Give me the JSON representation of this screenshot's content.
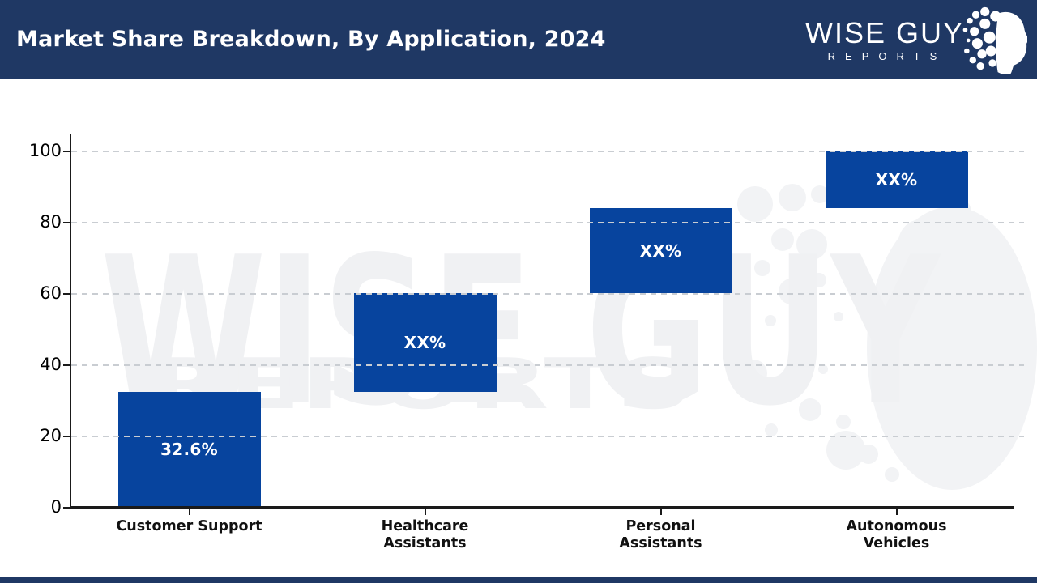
{
  "header": {
    "title": "Market Share Breakdown, By Application, 2024",
    "bg_color": "#1f3864",
    "logo": {
      "line1": "WISE GUY",
      "line2": "REPORTS"
    }
  },
  "watermark": {
    "line1": "WISE GUY",
    "line2": "REPORTS"
  },
  "footer": {
    "bg_color": "#1f3864"
  },
  "chart_data": {
    "type": "bar",
    "subtype": "waterfall",
    "title": "Market Share Breakdown, By Application, 2024",
    "categories": [
      "Customer Support",
      "Healthcare Assistants",
      "Personal Assistants",
      "Autonomous Vehicles"
    ],
    "category_label_lines": [
      [
        "Customer Support"
      ],
      [
        "Healthcare",
        "Assistants"
      ],
      [
        "Personal",
        "Assistants"
      ],
      [
        "Autonomous",
        "Vehicles"
      ]
    ],
    "series": [
      {
        "name": "Market share (%)",
        "segments": [
          {
            "category": "Customer Support",
            "start": 0,
            "end": 32.6,
            "label": "32.6%"
          },
          {
            "category": "Healthcare Assistants",
            "start": 32.6,
            "end": 60.3,
            "label": "XX%"
          },
          {
            "category": "Personal Assistants",
            "start": 60.3,
            "end": 84,
            "label": "XX%"
          },
          {
            "category": "Autonomous Vehicles",
            "start": 84,
            "end": 100,
            "label": "XX%"
          }
        ]
      }
    ],
    "xlabel": "",
    "ylabel": "",
    "ylim": [
      0,
      100
    ],
    "yticks": [
      0,
      20,
      40,
      60,
      80,
      100
    ],
    "grid": "horizontal-dashed-over-bars",
    "legend": "none",
    "bar_color": "#07449e",
    "bar_label_color": "#ffffff",
    "grid_color": "#c9cdd2",
    "axis_color": "#1a1a1a",
    "watermark_color": "#f0f2f4"
  }
}
